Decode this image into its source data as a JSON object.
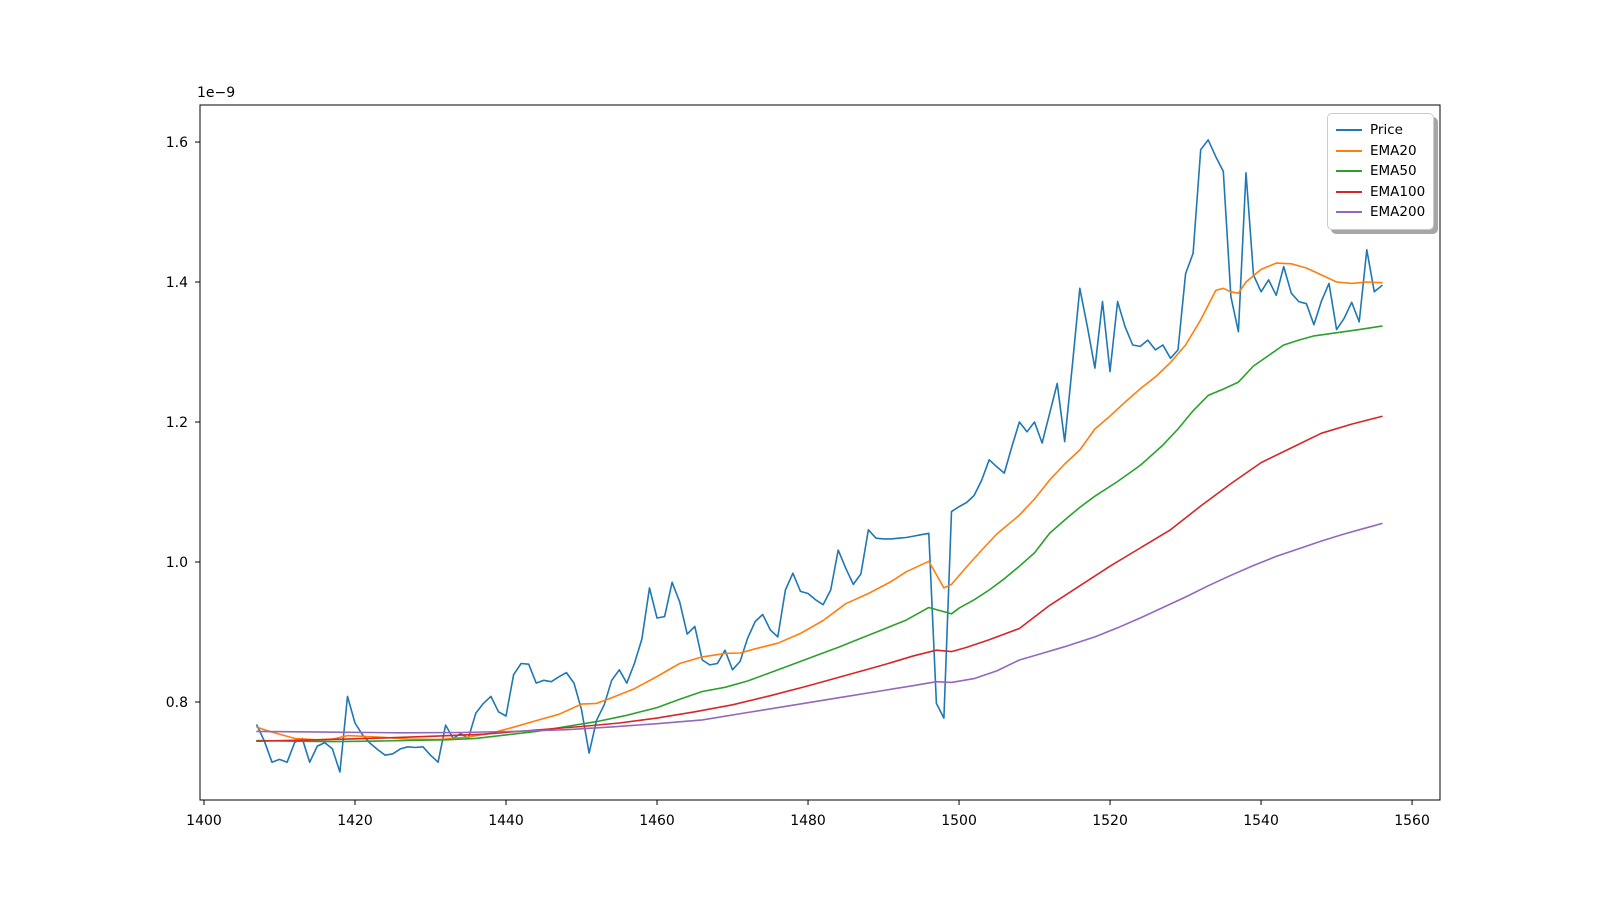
{
  "figure": {
    "offset_label": "1e−9",
    "background": "#ffffff",
    "spine_color": "#000000"
  },
  "chart_data": {
    "type": "line",
    "title": "",
    "xlabel": "",
    "ylabel": "",
    "y_offset_multiplier": "1e-9",
    "grid": false,
    "legend_position": "upper right",
    "xlim": [
      1399.47,
      1563.7
    ],
    "ylim": [
      0.66,
      1.6529
    ],
    "x_ticks": [
      1400,
      1420,
      1440,
      1460,
      1480,
      1500,
      1520,
      1540,
      1560
    ],
    "y_ticks": [
      0.8,
      1.0,
      1.2,
      1.4,
      1.6
    ],
    "series": [
      {
        "name": "Price",
        "color": "#1f77b4",
        "x_start": 1407,
        "x_step": 1,
        "values": [
          0.767,
          0.744,
          0.714,
          0.718,
          0.714,
          0.742,
          0.748,
          0.714,
          0.737,
          0.742,
          0.733,
          0.7,
          0.808,
          0.77,
          0.753,
          0.741,
          0.732,
          0.724,
          0.726,
          0.733,
          0.736,
          0.735,
          0.736,
          0.724,
          0.714,
          0.767,
          0.748,
          0.755,
          0.748,
          0.784,
          0.798,
          0.808,
          0.786,
          0.78,
          0.839,
          0.855,
          0.854,
          0.827,
          0.831,
          0.829,
          0.836,
          0.842,
          0.827,
          0.789,
          0.727,
          0.774,
          0.796,
          0.831,
          0.846,
          0.827,
          0.855,
          0.89,
          0.963,
          0.92,
          0.922,
          0.971,
          0.943,
          0.897,
          0.908,
          0.86,
          0.853,
          0.855,
          0.874,
          0.846,
          0.858,
          0.891,
          0.915,
          0.925,
          0.903,
          0.893,
          0.96,
          0.984,
          0.958,
          0.955,
          0.946,
          0.939,
          0.96,
          1.017,
          0.991,
          0.968,
          0.983,
          1.046,
          1.034,
          1.033,
          1.033,
          1.034,
          1.035,
          1.037,
          1.039,
          1.041,
          0.798,
          0.777,
          1.072,
          1.079,
          1.085,
          1.095,
          1.117,
          1.146,
          1.136,
          1.127,
          1.165,
          1.2,
          1.186,
          1.2,
          1.17,
          1.212,
          1.255,
          1.172,
          1.28,
          1.391,
          1.336,
          1.277,
          1.372,
          1.272,
          1.372,
          1.336,
          1.31,
          1.308,
          1.317,
          1.303,
          1.31,
          1.291,
          1.303,
          1.412,
          1.441,
          1.589,
          1.603,
          1.579,
          1.558,
          1.379,
          1.329,
          1.556,
          1.41,
          1.386,
          1.403,
          1.381,
          1.422,
          1.384,
          1.372,
          1.369,
          1.339,
          1.373,
          1.398,
          1.332,
          1.348,
          1.371,
          1.343,
          1.446,
          1.386,
          1.395
        ]
      },
      {
        "name": "EMA20",
        "color": "#ff7f0e",
        "x": [
          1407,
          1409,
          1412,
          1415,
          1417,
          1419,
          1423,
          1427,
          1431,
          1435,
          1438,
          1441,
          1444,
          1447,
          1450,
          1452,
          1454,
          1457,
          1460,
          1463,
          1466,
          1469,
          1471,
          1473,
          1476,
          1479,
          1482,
          1485,
          1488,
          1491,
          1493,
          1495,
          1496,
          1497,
          1498,
          1499,
          1501,
          1503,
          1505,
          1508,
          1510,
          1512,
          1514,
          1516,
          1518,
          1520,
          1522,
          1524,
          1526,
          1528,
          1530,
          1532,
          1534,
          1535,
          1536,
          1537,
          1538,
          1540,
          1542,
          1544,
          1546,
          1548,
          1550,
          1552,
          1554,
          1556
        ],
        "values": [
          0.764,
          0.757,
          0.748,
          0.746,
          0.747,
          0.752,
          0.75,
          0.747,
          0.7465,
          0.75,
          0.7555,
          0.764,
          0.7735,
          0.7825,
          0.797,
          0.798,
          0.806,
          0.819,
          0.8365,
          0.855,
          0.8645,
          0.8695,
          0.87,
          0.876,
          0.884,
          0.898,
          0.9165,
          0.9405,
          0.955,
          0.972,
          0.986,
          0.996,
          1.001,
          0.982,
          0.963,
          0.968,
          0.993,
          1.017,
          1.04,
          1.067,
          1.09,
          1.117,
          1.14,
          1.16,
          1.19,
          1.2085,
          1.2285,
          1.2475,
          1.2645,
          1.285,
          1.31,
          1.346,
          1.388,
          1.391,
          1.386,
          1.384,
          1.4,
          1.418,
          1.427,
          1.426,
          1.42,
          1.41,
          1.4,
          1.398,
          1.4,
          1.399
        ]
      },
      {
        "name": "EMA50",
        "color": "#2ca02c",
        "x": [
          1407,
          1412,
          1417,
          1422,
          1427,
          1432,
          1436,
          1440,
          1444,
          1448,
          1452,
          1456,
          1460,
          1463,
          1466,
          1469,
          1472,
          1475,
          1478,
          1481,
          1484,
          1487,
          1490,
          1493,
          1495,
          1496,
          1497,
          1499,
          1500,
          1502,
          1504,
          1506,
          1508,
          1510,
          1512,
          1514,
          1516,
          1518,
          1521,
          1524,
          1527,
          1529,
          1531,
          1533,
          1535,
          1537,
          1539,
          1541,
          1543,
          1545,
          1547,
          1549,
          1551,
          1553,
          1556
        ],
        "values": [
          0.745,
          0.744,
          0.7435,
          0.744,
          0.745,
          0.746,
          0.748,
          0.753,
          0.758,
          0.765,
          0.772,
          0.781,
          0.792,
          0.804,
          0.815,
          0.821,
          0.83,
          0.842,
          0.854,
          0.866,
          0.878,
          0.891,
          0.904,
          0.917,
          0.929,
          0.935,
          0.932,
          0.926,
          0.934,
          0.946,
          0.96,
          0.976,
          0.994,
          1.013,
          1.041,
          1.06,
          1.078,
          1.094,
          1.115,
          1.138,
          1.167,
          1.19,
          1.216,
          1.238,
          1.247,
          1.257,
          1.28,
          1.295,
          1.31,
          1.317,
          1.323,
          1.326,
          1.329,
          1.332,
          1.337
        ]
      },
      {
        "name": "EMA100",
        "color": "#d62728",
        "x": [
          1407,
          1415,
          1422,
          1430,
          1437,
          1444,
          1450,
          1455,
          1460,
          1465,
          1470,
          1475,
          1480,
          1485,
          1490,
          1494,
          1497,
          1499,
          1501,
          1504,
          1508,
          1512,
          1516,
          1520,
          1524,
          1528,
          1532,
          1536,
          1540,
          1544,
          1548,
          1552,
          1556
        ],
        "values": [
          0.744,
          0.746,
          0.748,
          0.751,
          0.754,
          0.76,
          0.765,
          0.77,
          0.777,
          0.786,
          0.796,
          0.809,
          0.823,
          0.838,
          0.853,
          0.866,
          0.874,
          0.872,
          0.878,
          0.889,
          0.905,
          0.938,
          0.966,
          0.994,
          1.02,
          1.046,
          1.08,
          1.112,
          1.142,
          1.163,
          1.184,
          1.197,
          1.208
        ]
      },
      {
        "name": "EMA200",
        "color": "#9467bd",
        "x": [
          1407,
          1416,
          1426,
          1434,
          1441,
          1448,
          1454,
          1460,
          1466,
          1472,
          1478,
          1484,
          1490,
          1494,
          1497,
          1499,
          1502,
          1505,
          1508,
          1511,
          1514,
          1518,
          1521,
          1524,
          1527,
          1530,
          1533,
          1536,
          1539,
          1542,
          1545,
          1548,
          1551,
          1554,
          1556
        ],
        "values": [
          0.758,
          0.757,
          0.756,
          0.7565,
          0.758,
          0.7605,
          0.7645,
          0.769,
          0.7745,
          0.785,
          0.7955,
          0.806,
          0.8165,
          0.8235,
          0.829,
          0.828,
          0.8335,
          0.8445,
          0.86,
          0.8695,
          0.879,
          0.893,
          0.906,
          0.92,
          0.935,
          0.95,
          0.966,
          0.981,
          0.995,
          1.008,
          1.019,
          1.03,
          1.04,
          1.049,
          1.055
        ]
      }
    ]
  }
}
